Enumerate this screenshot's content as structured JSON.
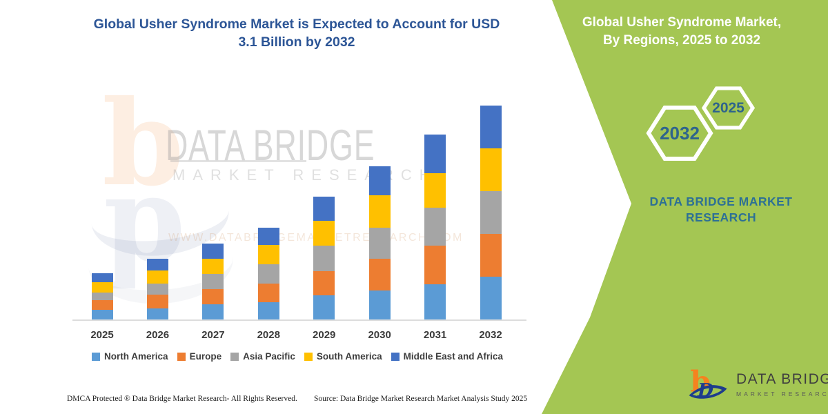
{
  "main_title": {
    "line1": "Global Usher Syndrome Market is Expected to Account for USD",
    "line2": "3.1 Billion by 2032",
    "color": "#2c5596"
  },
  "watermark": {
    "logo_glyph": "b",
    "brand_line1": "DATA BRIDGE",
    "brand_line2": "MARKET RESEARCH",
    "url_line": "WWW.DATABRIDGEMARKETRESEARCH.COM"
  },
  "chart_data": {
    "type": "bar",
    "stacked": true,
    "title": "Global Usher Syndrome Market, By Regions, 2025 to 2032",
    "unit": "USD Billion",
    "grid": false,
    "legend_position": "bottom",
    "ylim": [
      0,
      3.2
    ],
    "categories": [
      "2025",
      "2026",
      "2027",
      "2028",
      "2029",
      "2030",
      "2031",
      "2032"
    ],
    "series": [
      {
        "name": "North America",
        "color": "#5b9bd5",
        "values": [
          0.14,
          0.16,
          0.22,
          0.25,
          0.35,
          0.42,
          0.51,
          0.62
        ]
      },
      {
        "name": "Europe",
        "color": "#ed7d31",
        "values": [
          0.14,
          0.2,
          0.22,
          0.27,
          0.35,
          0.46,
          0.56,
          0.62
        ]
      },
      {
        "name": "Asia Pacific",
        "color": "#a5a5a5",
        "values": [
          0.11,
          0.16,
          0.22,
          0.28,
          0.37,
          0.45,
          0.55,
          0.62
        ]
      },
      {
        "name": "South America",
        "color": "#ffc000",
        "values": [
          0.15,
          0.19,
          0.22,
          0.28,
          0.36,
          0.47,
          0.5,
          0.62
        ]
      },
      {
        "name": "Middle East and Africa",
        "color": "#4472c4",
        "values": [
          0.13,
          0.17,
          0.22,
          0.25,
          0.35,
          0.42,
          0.56,
          0.62
        ]
      }
    ],
    "totals": [
      0.67,
      0.88,
      1.1,
      1.33,
      1.78,
      2.22,
      2.68,
      3.1
    ]
  },
  "right_panel": {
    "bg_color": "#a4c653",
    "title_line1": "Global Usher Syndrome Market,",
    "title_line2": "By Regions, 2025 to 2032",
    "hexagon_left_year": "2032",
    "hexagon_right_year": "2025",
    "brand_line1": "DATA BRIDGE MARKET",
    "brand_line2": "RESEARCH"
  },
  "logo": {
    "glyph": "b",
    "name": "DATA BRIDGE",
    "subtitle": "MARKET RESEARCH",
    "orange": "#f5821f",
    "blue": "#1e3c8c"
  },
  "footer": {
    "dmca": "DMCA Protected ® Data Bridge Market Research-  All Rights Reserved.",
    "source": "Source: Data Bridge Market Research  Market Analysis Study 2025"
  }
}
